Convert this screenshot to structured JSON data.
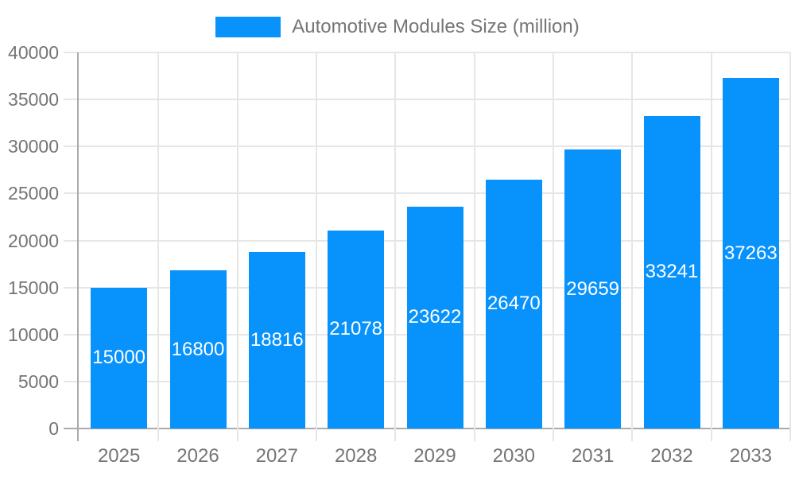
{
  "legend": {
    "label": "Automotive Modules Size (million)"
  },
  "colors": {
    "bar": "#0892fb",
    "grid": "#e6e6e6",
    "axis": "#ababab",
    "tick_text": "#757575",
    "bar_label": "#ffffff",
    "background": "#ffffff"
  },
  "chart_data": {
    "type": "bar",
    "title": "Automotive Modules Size (million)",
    "categories": [
      "2025",
      "2026",
      "2027",
      "2028",
      "2029",
      "2030",
      "2031",
      "2032",
      "2033"
    ],
    "values": [
      15000,
      16800,
      18816,
      21078,
      23622,
      26470,
      29659,
      33241,
      37263
    ],
    "series_name": "Automotive Modules Size (million)",
    "xlabel": "",
    "ylabel": "",
    "ylim": [
      0,
      40000
    ],
    "ytick_step": 5000,
    "ytick_labels": [
      "0",
      "5000",
      "10000",
      "15000",
      "20000",
      "25000",
      "30000",
      "35000",
      "40000"
    ],
    "grid": true,
    "legend_position": "top",
    "value_labels": "inside-center"
  }
}
